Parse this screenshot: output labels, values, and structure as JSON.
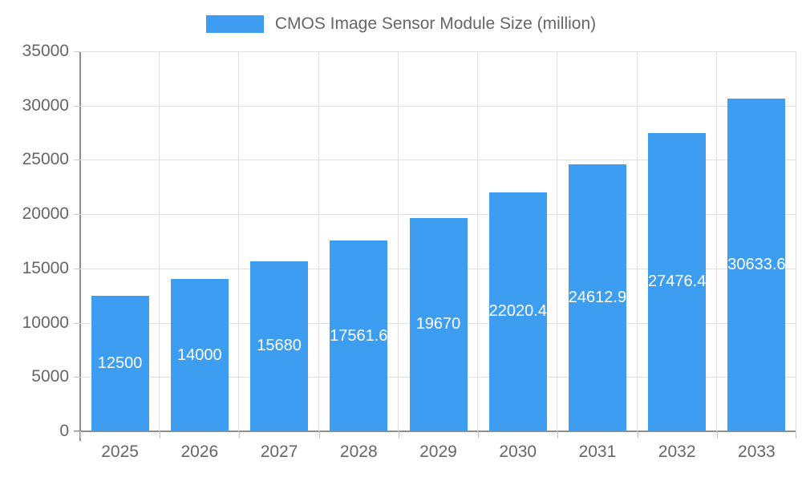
{
  "legend": {
    "label": "CMOS Image Sensor Module Size (million)"
  },
  "chart_data": {
    "type": "bar",
    "title": "CMOS Image Sensor Module Size (million)",
    "categories": [
      "2025",
      "2026",
      "2027",
      "2028",
      "2029",
      "2030",
      "2031",
      "2032",
      "2033"
    ],
    "series": [
      {
        "name": "CMOS Image Sensor Module Size (million)",
        "values": [
          12500,
          14000,
          15680,
          17561.6,
          19670,
          22020.4,
          24612.9,
          27476.4,
          30633.6
        ]
      }
    ],
    "bar_labels": [
      "12500",
      "14000",
      "15680",
      "17561.6",
      "19670",
      "22020.4",
      "24612.9",
      "27476.4",
      "30633.6"
    ],
    "xlabel": "",
    "ylabel": "",
    "ylim": [
      0,
      35000
    ],
    "ytick_step": 5000,
    "ytick_labels": [
      "0",
      "5000",
      "10000",
      "15000",
      "20000",
      "25000",
      "30000",
      "35000"
    ],
    "grid": true,
    "legend_position": "top",
    "colors": {
      "bar": "#3D9DF0",
      "bar_label": "#FFFFFF",
      "axis_line": "#8E8E8E",
      "grid_line": "#E0E0E0",
      "tick": "#C8C8C8",
      "text": "#666666"
    }
  }
}
